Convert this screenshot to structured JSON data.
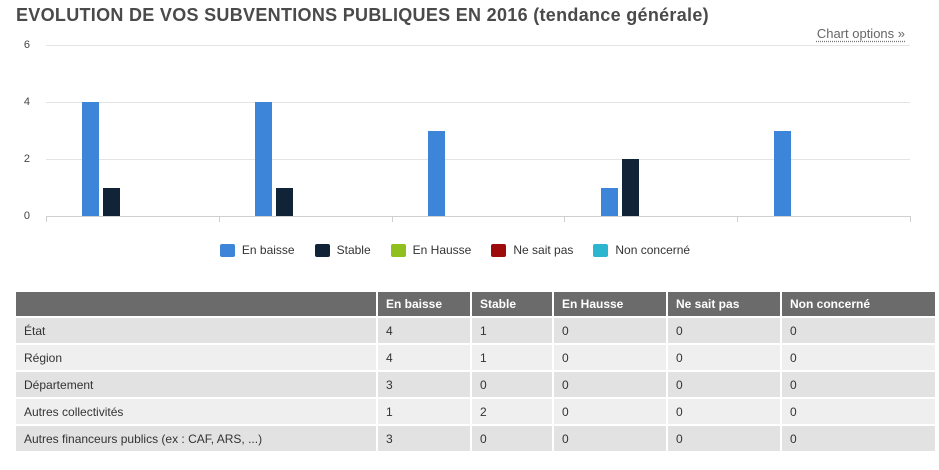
{
  "header": {
    "title": "EVOLUTION DE VOS SUBVENTIONS PUBLIQUES EN 2016 (tendance générale)",
    "chart_options_label": "Chart options »"
  },
  "colors": {
    "en_baisse": "#3d85d8",
    "stable": "#102337",
    "en_hausse": "#90c020",
    "ne_sait_pas": "#9e0b0b",
    "non_concerne": "#2cb5cf",
    "table_header_bg": "#6b6b6b",
    "row_dark_bg": "#e2e2e2",
    "row_light_bg": "#efefef"
  },
  "chart_data": {
    "type": "bar",
    "title": "EVOLUTION DE VOS SUBVENTIONS PUBLIQUES EN 2016 (tendance générale)",
    "xlabel": "",
    "ylabel": "",
    "ylim": [
      0,
      6
    ],
    "yticks": [
      0,
      2,
      4,
      6
    ],
    "grid": true,
    "legend_position": "bottom",
    "x_tick_labels_visible": false,
    "categories": [
      "État",
      "Région",
      "Département",
      "Autres collectivités",
      "Autres financeurs publics (ex : CAF, ARS, ...)"
    ],
    "series": [
      {
        "name": "En baisse",
        "color": "#3d85d8",
        "values": [
          4,
          4,
          3,
          1,
          3
        ]
      },
      {
        "name": "Stable",
        "color": "#102337",
        "values": [
          1,
          1,
          0,
          2,
          0
        ]
      },
      {
        "name": "En Hausse",
        "color": "#90c020",
        "values": [
          0,
          0,
          0,
          0,
          0
        ]
      },
      {
        "name": "Ne sait pas",
        "color": "#9e0b0b",
        "values": [
          0,
          0,
          0,
          0,
          0
        ]
      },
      {
        "name": "Non concerné",
        "color": "#2cb5cf",
        "values": [
          0,
          0,
          0,
          0,
          0
        ]
      }
    ]
  },
  "table": {
    "headers": [
      "",
      "En baisse",
      "Stable",
      "En Hausse",
      "Ne sait pas",
      "Non concerné"
    ],
    "rows": [
      {
        "label": "État",
        "values": [
          4,
          1,
          0,
          0,
          0
        ]
      },
      {
        "label": "Région",
        "values": [
          4,
          1,
          0,
          0,
          0
        ]
      },
      {
        "label": "Département",
        "values": [
          3,
          0,
          0,
          0,
          0
        ]
      },
      {
        "label": "Autres collectivités",
        "values": [
          1,
          2,
          0,
          0,
          0
        ]
      },
      {
        "label": "Autres financeurs publics (ex : CAF, ARS, ...)",
        "values": [
          3,
          0,
          0,
          0,
          0
        ]
      }
    ]
  }
}
